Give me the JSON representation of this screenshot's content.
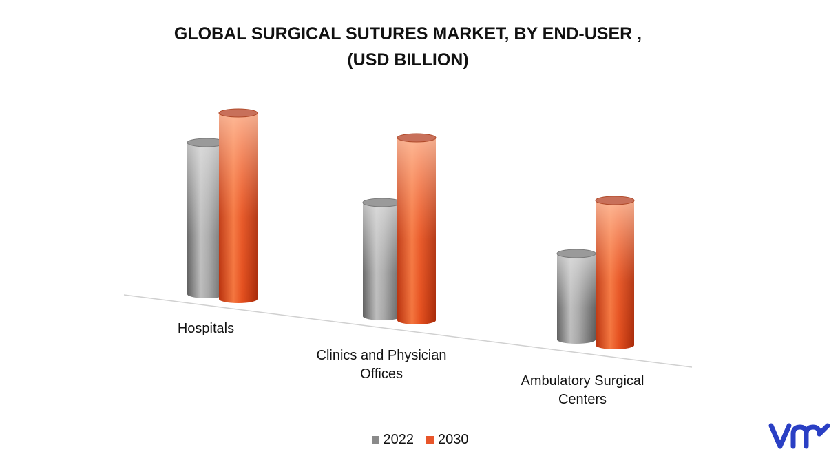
{
  "chart_data": {
    "type": "bar",
    "title": "GLOBAL SURGICAL SUTURES MARKET, BY END-USER ,",
    "subtitle": "(USD BILLION)",
    "categories": [
      "Hospitals",
      "Clinics and Physician Offices",
      "Ambulatory Surgical Centers"
    ],
    "series": [
      {
        "name": "2022",
        "values": [
          2.2,
          1.65,
          1.25
        ]
      },
      {
        "name": "2030",
        "values": [
          2.7,
          2.65,
          2.1
        ]
      }
    ],
    "ylim": [
      0,
      3
    ],
    "grid": false,
    "legend_position": "bottom",
    "colors": {
      "2022": "#8a8a8a",
      "2030": "#e8552a"
    },
    "style": "3d-cylinder"
  },
  "brand": {
    "logo_icon": "vmr-logo-icon",
    "color": "#2a3fc4"
  }
}
